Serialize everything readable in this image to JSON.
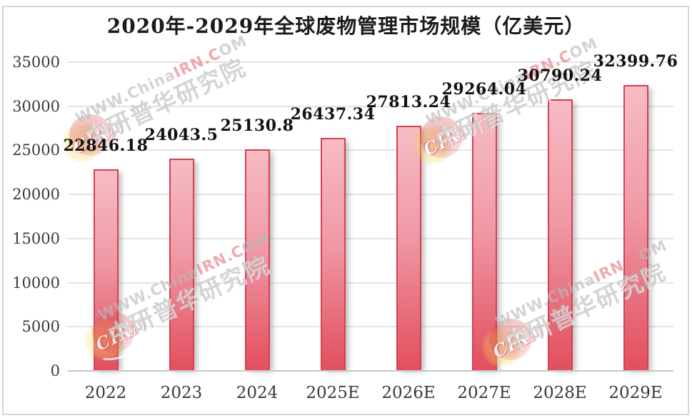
{
  "title": "2020年-2029年全球废物管理市场规模（亿美元）",
  "chart_data": {
    "type": "bar",
    "title": "2020年-2029年全球废物管理市场规模（亿美元）",
    "unit": "亿美元",
    "categories": [
      "2022",
      "2023",
      "2024",
      "2025E",
      "2026E",
      "2027E",
      "2028E",
      "2029E"
    ],
    "values": [
      22846.18,
      24043.5,
      25130.8,
      26437.34,
      27813.24,
      29264.04,
      30790.24,
      32399.76
    ],
    "value_labels": [
      "22846.18",
      "24043.5",
      "25130.8",
      "26437.34",
      "27813.24",
      "29264.04",
      "30790.24",
      "32399.76"
    ],
    "xlabel": "",
    "ylabel": "",
    "y_ticks": [
      0,
      5000,
      10000,
      15000,
      20000,
      25000,
      30000,
      35000
    ],
    "ylim": [
      0,
      35000
    ],
    "grid": true,
    "legend": false,
    "colors": {
      "bar_gradient_top": "#f6bcc4",
      "bar_gradient_bottom": "#e24f5e",
      "bar_border": "#d64053",
      "gridline": "#e4e4e4",
      "axis_line": "#c6c6c6",
      "value_label": "#111111",
      "tick_label": "#3a3a3a",
      "title": "#1b1b1b"
    }
  },
  "watermark": {
    "line1_prefix": "WWW.China",
    "line1_red": "IRN.C",
    "line1_suffix": "OM",
    "line2": "中研普华研究院",
    "logo_text": "CIRN"
  }
}
